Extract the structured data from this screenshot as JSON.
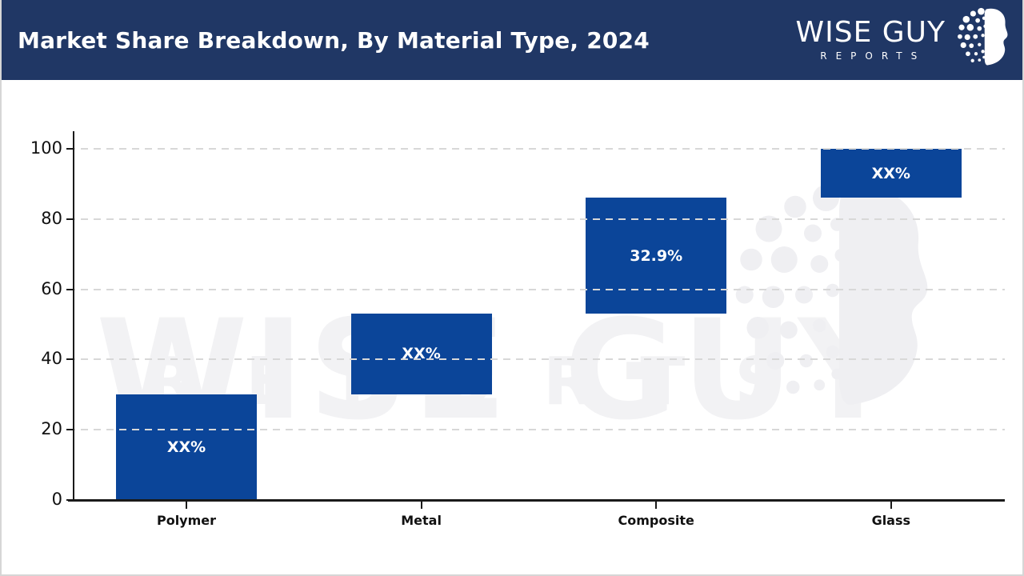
{
  "header": {
    "title": "Market Share Breakdown, By Material Type, 2024",
    "logo": {
      "line1": "WISE GUY",
      "line2": "REPORTS"
    }
  },
  "watermark": {
    "line1": "WISE GUY",
    "line2": "REPORTS"
  },
  "colors": {
    "header_bg": "#203765",
    "bar": "#0b4599",
    "gridline": "#d8d8d8",
    "axis": "#1a1a1a",
    "bar_label_text": "#ffffff",
    "watermark": "#f2f2f4"
  },
  "chart_data": {
    "type": "bar",
    "subtype": "waterfall",
    "title": "Market Share Breakdown, By Material Type, 2024",
    "categories": [
      "Polymer",
      "Metal",
      "Composite",
      "Glass"
    ],
    "segments": [
      {
        "category": "Polymer",
        "start": 0,
        "end": 30.1,
        "label": "XX%"
      },
      {
        "category": "Metal",
        "start": 30.1,
        "end": 53.1,
        "label": "XX%"
      },
      {
        "category": "Composite",
        "start": 53.1,
        "end": 86.0,
        "label": "32.9%"
      },
      {
        "category": "Glass",
        "start": 86.0,
        "end": 100.0,
        "label": "XX%"
      }
    ],
    "yticks": [
      0,
      20,
      40,
      60,
      80,
      100
    ],
    "ylim": [
      0,
      104
    ],
    "xlabel": "",
    "ylabel": "",
    "grid": "horizontal-dashed",
    "legend_position": "none"
  }
}
